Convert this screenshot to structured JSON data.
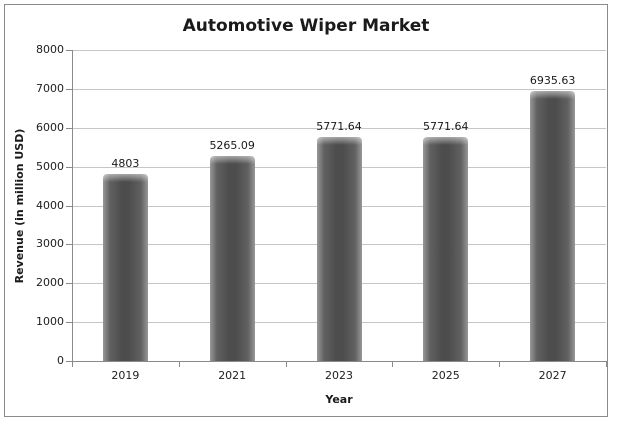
{
  "chart_data": {
    "type": "bar",
    "title": "Automotive Wiper Market",
    "xlabel": "Year",
    "ylabel": "Revenue (in million USD)",
    "categories": [
      "2019",
      "2021",
      "2023",
      "2025",
      "2027"
    ],
    "values": [
      4803,
      5265.09,
      5771.64,
      5771.64,
      6935.63
    ],
    "value_labels": [
      "4803",
      "5265.09",
      "5771.64",
      "5771.64",
      "6935.63"
    ],
    "ylim": [
      0,
      8000
    ],
    "ytick_step": 1000,
    "yticks": [
      "0",
      "1000",
      "2000",
      "3000",
      "4000",
      "5000",
      "6000",
      "7000",
      "8000"
    ],
    "grid": "horizontal",
    "legend": "none",
    "colors": {
      "bar_fill": "#4d4d4d",
      "bar_edge_highlight": "#989898",
      "gridline": "#c6c6c6",
      "axis_line": "#8a8a8a",
      "text": "#1a1a1a",
      "background": "#ffffff",
      "frame_border": "#8a8a8a"
    }
  }
}
